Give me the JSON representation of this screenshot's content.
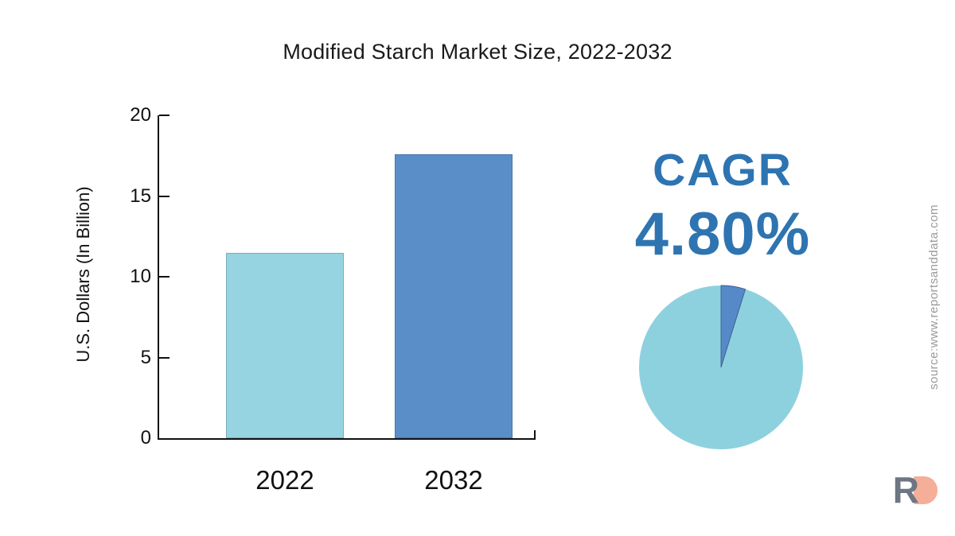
{
  "page": {
    "background": "#ffffff"
  },
  "chart_data": [
    {
      "type": "bar",
      "title": "Modified Starch Market Size, 2022-2032",
      "categories": [
        "2022",
        "2032"
      ],
      "values": [
        11.5,
        17.6
      ],
      "xlabel": "",
      "ylabel": "U.S. Dollars (In Billion)",
      "ylim": [
        0,
        20
      ],
      "yticks": [
        0,
        5,
        10,
        15,
        20
      ],
      "bar_colors": [
        "#97d4e2",
        "#5a8ec9"
      ],
      "grid": false,
      "legend": "none",
      "axis_color": "#111111"
    },
    {
      "type": "pie",
      "values": [
        4.8,
        95.2
      ],
      "colors": [
        "#5589c8",
        "#8ed1de"
      ],
      "start_angle_deg": -90,
      "direction": "clockwise",
      "annotation": "CAGR 4.80%"
    }
  ],
  "annotations": {
    "cagr_label": "CAGR",
    "cagr_value": "4.80%",
    "cagr_color": "#2e74b1"
  },
  "source": {
    "text": "source:www.reportsanddata.com",
    "color": "#9a9a9a"
  },
  "logo": {
    "letter": "R",
    "letter_color": "#6e7683",
    "d_shape_color": "#f5ae97"
  }
}
